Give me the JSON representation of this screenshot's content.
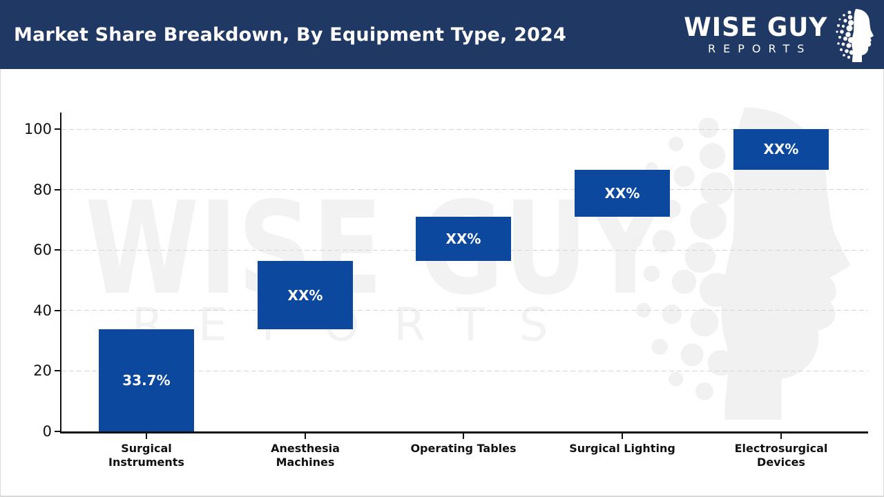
{
  "header": {
    "title": "Market Share Breakdown, By Equipment Type, 2024",
    "bg_color": "#203864",
    "logo": {
      "wordmark": "WISE GUY",
      "subtext": "REPORTS"
    }
  },
  "watermark": {
    "line1": "WISE GUY",
    "line2": "REPORTS"
  },
  "chart_data": {
    "type": "bar",
    "subtype": "waterfall",
    "title": "Market Share Breakdown, By Equipment Type, 2024",
    "xlabel": "",
    "ylabel": "",
    "ylim": [
      0,
      105
    ],
    "yticks": [
      0,
      20,
      40,
      60,
      80,
      100
    ],
    "grid": "horizontal dashed",
    "legend": "none",
    "bar_color": "#0b489e",
    "bar_label_color": "#ffffff",
    "categories": [
      "Surgical Instruments",
      "Anesthesia Machines",
      "Operating Tables",
      "Surgical Lighting",
      "Electrosurgical Devices"
    ],
    "bars": [
      {
        "category_lines": [
          "Surgical",
          "Instruments"
        ],
        "start": 0,
        "end": 33.7,
        "label": "33.7%"
      },
      {
        "category_lines": [
          "Anesthesia",
          "Machines"
        ],
        "start": 33.7,
        "end": 56.4,
        "label": "XX%"
      },
      {
        "category_lines": [
          "Operating Tables"
        ],
        "start": 56.4,
        "end": 70.9,
        "label": "XX%"
      },
      {
        "category_lines": [
          "Surgical Lighting"
        ],
        "start": 70.9,
        "end": 86.6,
        "label": "XX%"
      },
      {
        "category_lines": [
          "Electrosurgical",
          "Devices"
        ],
        "start": 86.6,
        "end": 100,
        "label": "XX%"
      }
    ]
  }
}
